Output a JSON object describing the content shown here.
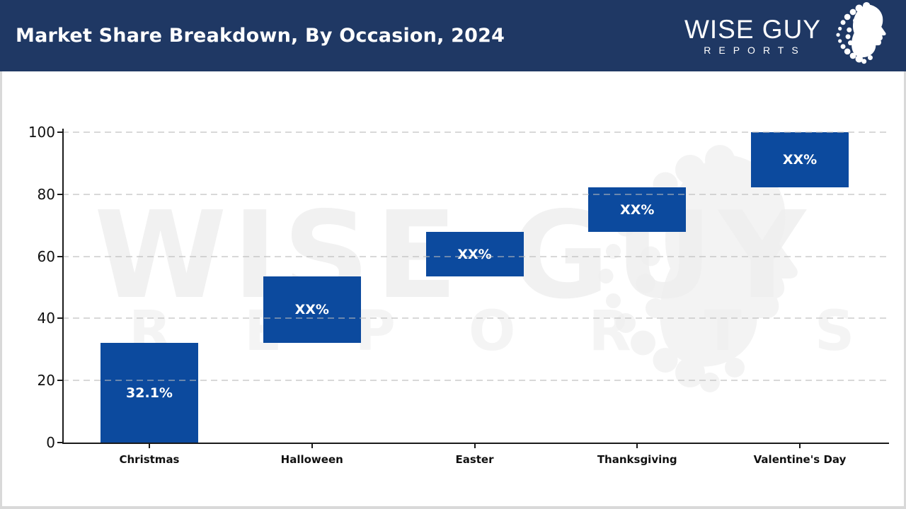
{
  "header": {
    "title": "Market Share Breakdown, By Occasion, 2024",
    "bg_color": "#1F3864",
    "logo_line1": "WISE GUY",
    "logo_line2": "REPORTS"
  },
  "watermark": {
    "line1": "WISE GUY",
    "line2": "R E P O R T S"
  },
  "chart_data": {
    "type": "bar",
    "subtype": "waterfall (floating segments stacking to 100%)",
    "title": "Market Share Breakdown, By Occasion, 2024",
    "categories": [
      "Christmas",
      "Halloween",
      "Easter",
      "Thanksgiving",
      "Valentine's Day"
    ],
    "segments": [
      {
        "category": "Christmas",
        "start": 0,
        "end": 32.1,
        "label": "32.1%"
      },
      {
        "category": "Halloween",
        "start": 32.1,
        "end": 53.5,
        "label": "XX%"
      },
      {
        "category": "Easter",
        "start": 53.5,
        "end": 67.9,
        "label": "XX%"
      },
      {
        "category": "Thanksgiving",
        "start": 67.9,
        "end": 82.2,
        "label": "XX%"
      },
      {
        "category": "Valentine's Day",
        "start": 82.2,
        "end": 100,
        "label": "XX%"
      }
    ],
    "xlabel": "",
    "ylabel": "",
    "ylim": [
      0,
      100
    ],
    "yticks": [
      0,
      20,
      40,
      60,
      80,
      100
    ],
    "grid": "horizontal dashed",
    "legend": false,
    "bar_color": "#0C4A9E",
    "bar_label_color": "#FFFFFF",
    "axis_color": "#1A1A1A"
  }
}
